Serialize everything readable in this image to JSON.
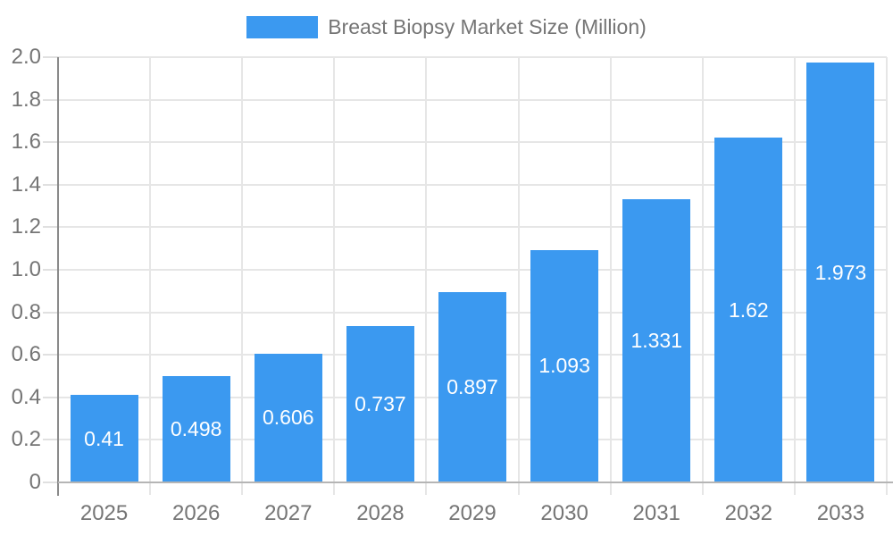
{
  "chart_data": {
    "type": "bar",
    "title": "Breast Biopsy Market Size (Million)",
    "categories": [
      "2025",
      "2026",
      "2027",
      "2028",
      "2029",
      "2030",
      "2031",
      "2032",
      "2033"
    ],
    "values": [
      0.41,
      0.498,
      0.606,
      0.737,
      0.897,
      1.093,
      1.331,
      1.62,
      1.973
    ],
    "value_labels": [
      "0.41",
      "0.498",
      "0.606",
      "0.737",
      "0.897",
      "1.093",
      "1.331",
      "1.62",
      "1.973"
    ],
    "xlabel": "",
    "ylabel": "",
    "ylim": [
      0,
      2.0
    ],
    "ytick_labels": [
      "0",
      "0.2",
      "0.4",
      "0.6",
      "0.8",
      "1.0",
      "1.2",
      "1.4",
      "1.6",
      "1.8",
      "2.0"
    ],
    "grid": true,
    "legend_position": "top-center",
    "series_name": "Breast Biopsy Market Size (Million)"
  },
  "colors": {
    "bar": "#3b99f0",
    "gridline": "#e6e6e6",
    "axis_line": "#8a8a8a",
    "baseline": "#b5b5b5",
    "tick": "#e0e0e0",
    "label_text": "#757575",
    "value_text": "#ffffff"
  }
}
